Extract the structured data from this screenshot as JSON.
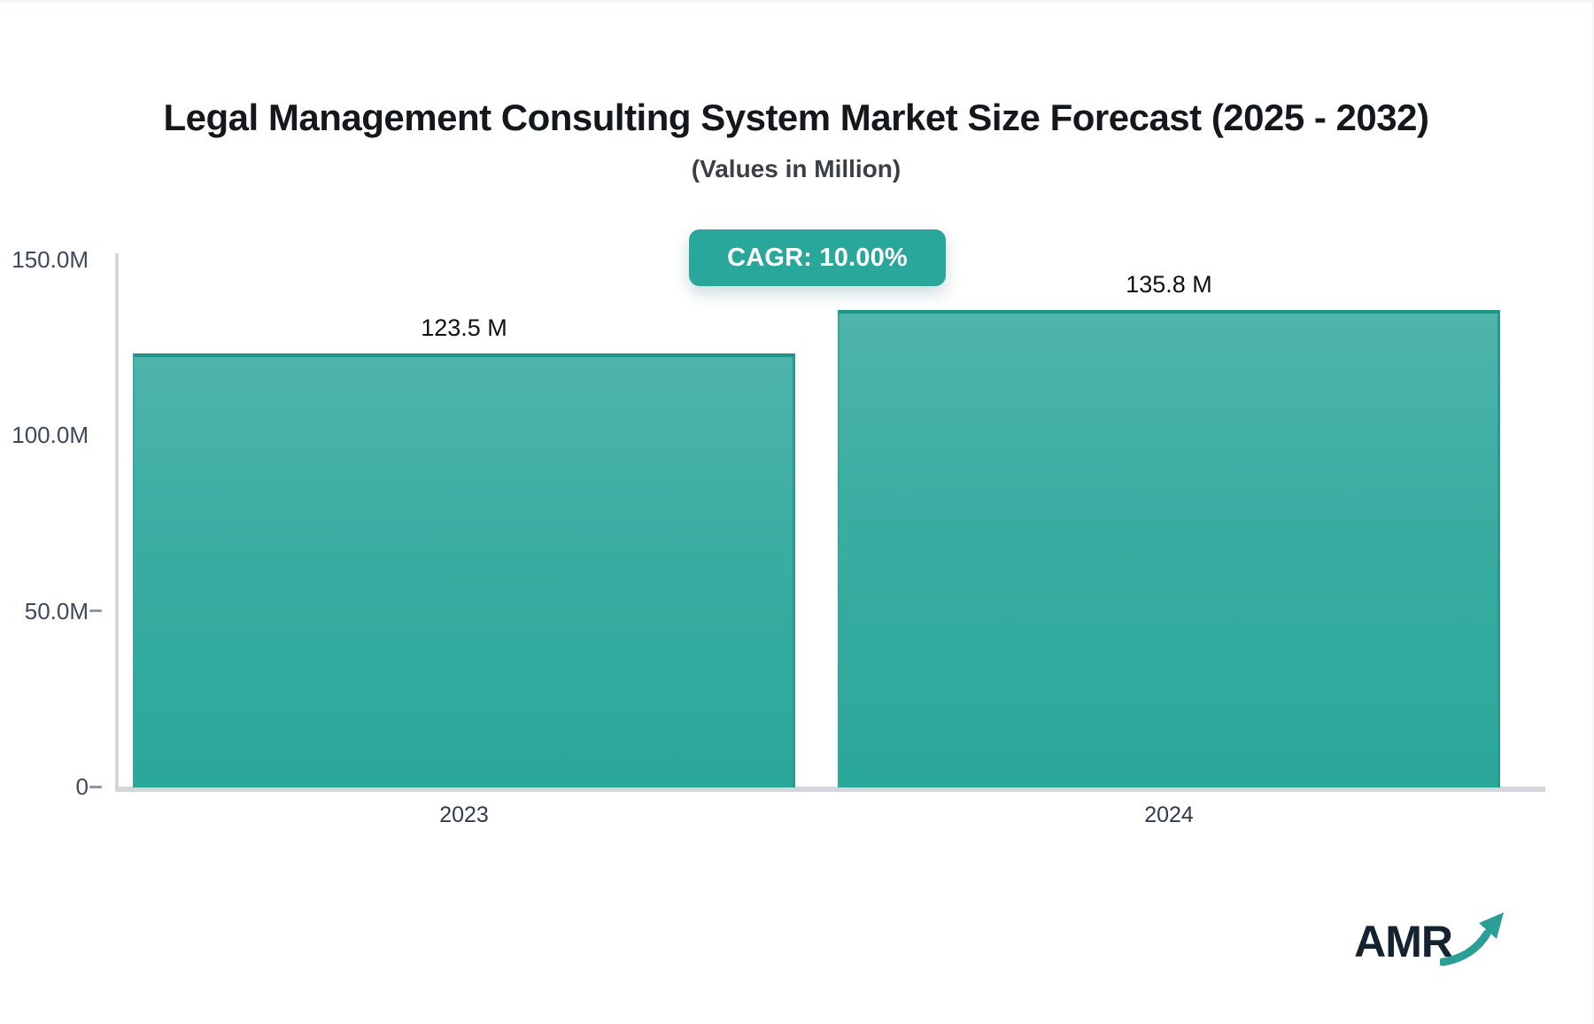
{
  "header": {
    "title": "Legal Management Consulting System Market Size Forecast (2025 - 2032)",
    "subtitle": "(Values in Million)"
  },
  "badge": {
    "label": "CAGR: 10.00%"
  },
  "chart_data": {
    "type": "bar",
    "title": "Legal Management Consulting System Market Size Forecast (2025 - 2032)",
    "subtitle": "(Values in Million)",
    "categories": [
      "2023",
      "2024"
    ],
    "values": [
      123.5,
      135.8
    ],
    "value_labels": [
      "123.5 M",
      "135.8 M"
    ],
    "cagr_percent": "10.00%",
    "unit": "Million",
    "ylim": [
      0,
      150
    ],
    "yticks": [
      {
        "value": 150,
        "label": "150.0M"
      },
      {
        "value": 100,
        "label": "100.0M"
      },
      {
        "value": 50,
        "label": "50.0M"
      },
      {
        "value": 0,
        "label": "0"
      }
    ],
    "grid": false,
    "legend_position": "none",
    "bar_gradient_top": "#4fb5ac",
    "bar_gradient_bottom": "#2aa89a"
  },
  "branding": {
    "logo_text": "AMR",
    "arrow_icon": "trend-up-arrow"
  },
  "colors": {
    "accent_teal": "#2aa79b",
    "bar_border_top": "#1e9488",
    "axis_line": "#d5d8dd",
    "title_text": "#14171b",
    "axis_label_text": "#3e4a5b",
    "badge_bg": "#2aa79b",
    "badge_text": "#ffffff",
    "logo_text_color": "#152330",
    "logo_arrow_color": "#2b9e95"
  }
}
